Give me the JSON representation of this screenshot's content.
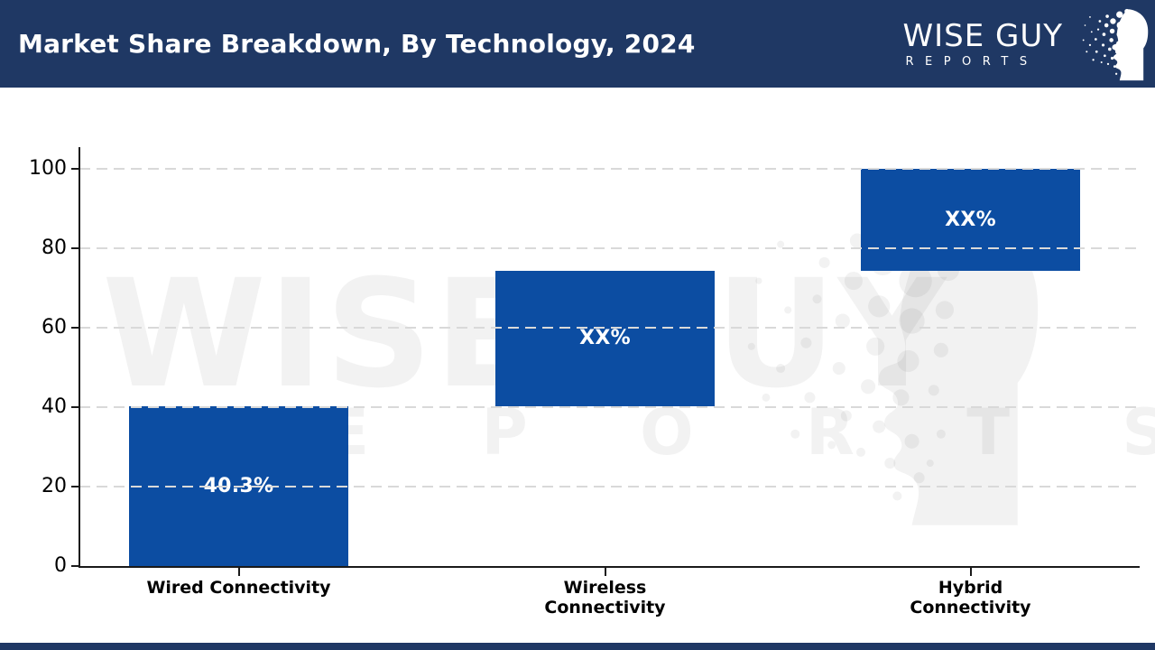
{
  "header": {
    "title": "Market Share Breakdown, By Technology, 2024",
    "logo": {
      "line1": "WISE GUY",
      "line2": "REPORTS",
      "icon": "dotted-face-profile-icon"
    }
  },
  "watermark": {
    "line1": "WISE GUY",
    "line2": "R E P O R T S",
    "icon": "dotted-face-profile-icon"
  },
  "colors": {
    "header_bg": "#1F3864",
    "footer_bg": "#1F3864",
    "bar": "#0C4DA2",
    "bar_label": "#FFFFFF",
    "gridline": "#D9D9D9",
    "axis": "#1A1A1A",
    "watermark": "rgba(0,0,0,0.05)"
  },
  "chart_data": {
    "type": "bar",
    "subtype": "waterfall",
    "title": "Market Share Breakdown, By Technology, 2024",
    "xlabel": "",
    "ylabel": "",
    "categories": [
      "Wired Connectivity",
      "Wireless\nConnectivity",
      "Hybrid\nConnectivity"
    ],
    "segments": [
      {
        "start": 0,
        "end": 40.3,
        "label": "40.3%"
      },
      {
        "start": 40.3,
        "end": 74.3,
        "label": "XX%"
      },
      {
        "start": 74.3,
        "end": 100,
        "label": "XX%"
      }
    ],
    "values": [
      40.3,
      34.0,
      25.7
    ],
    "value_labels": [
      "40.3%",
      "XX%",
      "XX%"
    ],
    "yticks": [
      0,
      20,
      40,
      60,
      80,
      100
    ],
    "ylim": [
      0,
      105.5
    ],
    "grid": "horizontal-dashed",
    "legend": "none"
  }
}
